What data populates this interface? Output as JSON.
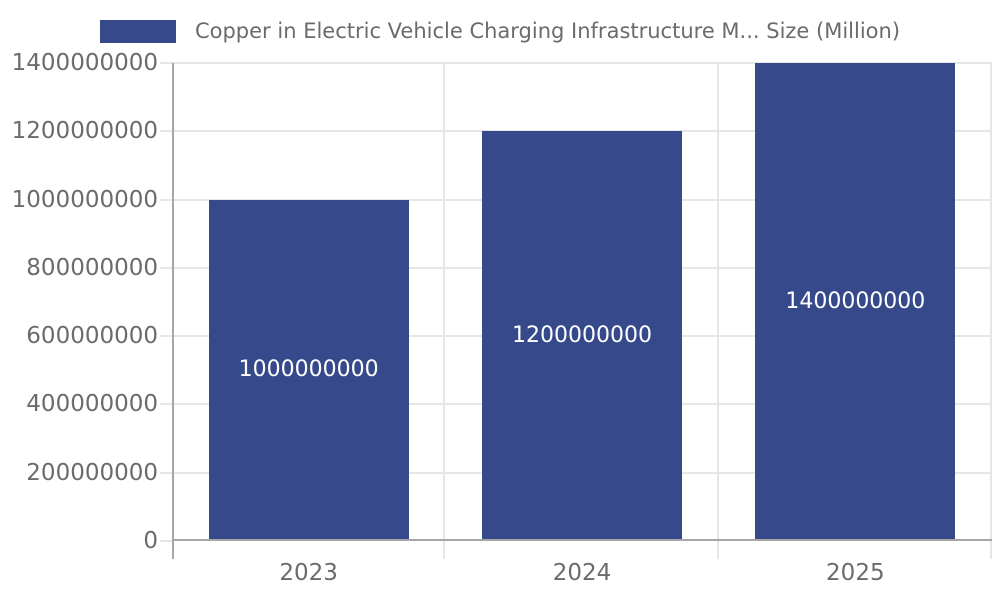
{
  "legend": {
    "label": "Copper in Electric Vehicle Charging Infrastructure M... Size (Million)"
  },
  "chart_data": {
    "type": "bar",
    "title": "",
    "xlabel": "",
    "ylabel": "",
    "categories": [
      "2023",
      "2024",
      "2025"
    ],
    "series": [
      {
        "name": "Copper in Electric Vehicle Charging Infrastructure M... Size (Million)",
        "values": [
          1000000000,
          1200000000,
          1400000000
        ],
        "data_labels": [
          "1000000000",
          "1200000000",
          "1400000000"
        ]
      }
    ],
    "ylim": [
      0,
      1400000000
    ],
    "ytick_step": 200000000,
    "ytick_labels": [
      "0",
      "200000000",
      "400000000",
      "600000000",
      "800000000",
      "1000000000",
      "1200000000",
      "1400000000"
    ],
    "grid": true,
    "legend_position": "top-center",
    "colors": {
      "bar": "#36498a",
      "bar_label_text": "#ffffff",
      "axis_text": "#6b6b6b",
      "grid_line": "#e6e6e6",
      "axis_line": "#a6a6a6",
      "background": "#ffffff"
    }
  }
}
